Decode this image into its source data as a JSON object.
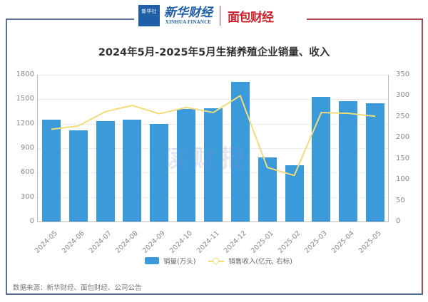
{
  "header": {
    "logo_box_text": "新华社",
    "logo_xinhua_cn": "新华财经",
    "logo_xinhua_en": "XINHUA FINANCE",
    "logo_mianbao": "面包财经"
  },
  "watermark": "读财报",
  "legend": {
    "bar_label": "销量(万头)",
    "line_label": "销售收入(亿元, 右标)"
  },
  "source": "数据来源：新华财经、面包财经、公司公告",
  "colors": {
    "bar": "#3b9ad9",
    "line": "#f0dc7a",
    "frame_blue": "#5a6f96",
    "frame_red": "#a8454f"
  },
  "chart_data": {
    "type": "bar+line",
    "title": "2024年5月-2025年5月生猪养殖企业销量、收入",
    "categories": [
      "2024-05",
      "2024-06",
      "2024-07",
      "2024-08",
      "2024-09",
      "2024-10",
      "2024-11",
      "2024-12",
      "2025-01",
      "2025-02",
      "2025-03",
      "2025-04",
      "2025-05"
    ],
    "series": [
      {
        "name": "销量(万头)",
        "type": "bar",
        "axis": "left",
        "values": [
          1250,
          1120,
          1230,
          1250,
          1200,
          1380,
          1390,
          1710,
          790,
          690,
          1530,
          1480,
          1450
        ]
      },
      {
        "name": "销售收入(亿元, 右标)",
        "type": "line",
        "axis": "right",
        "values": [
          220,
          228,
          262,
          277,
          257,
          272,
          260,
          300,
          129,
          110,
          260,
          258,
          251
        ]
      }
    ],
    "left_axis": {
      "ylim": [
        0,
        1800
      ],
      "ticks": [
        "0",
        "300",
        "600",
        "900",
        "1200",
        "1500",
        "1800"
      ]
    },
    "right_axis": {
      "ylim": [
        0,
        350
      ],
      "ticks": [
        "0",
        "50",
        "100",
        "150",
        "200",
        "250",
        "300",
        "350"
      ]
    },
    "xlabel": "",
    "ylabel": "",
    "grid": true,
    "legend_position": "bottom"
  }
}
